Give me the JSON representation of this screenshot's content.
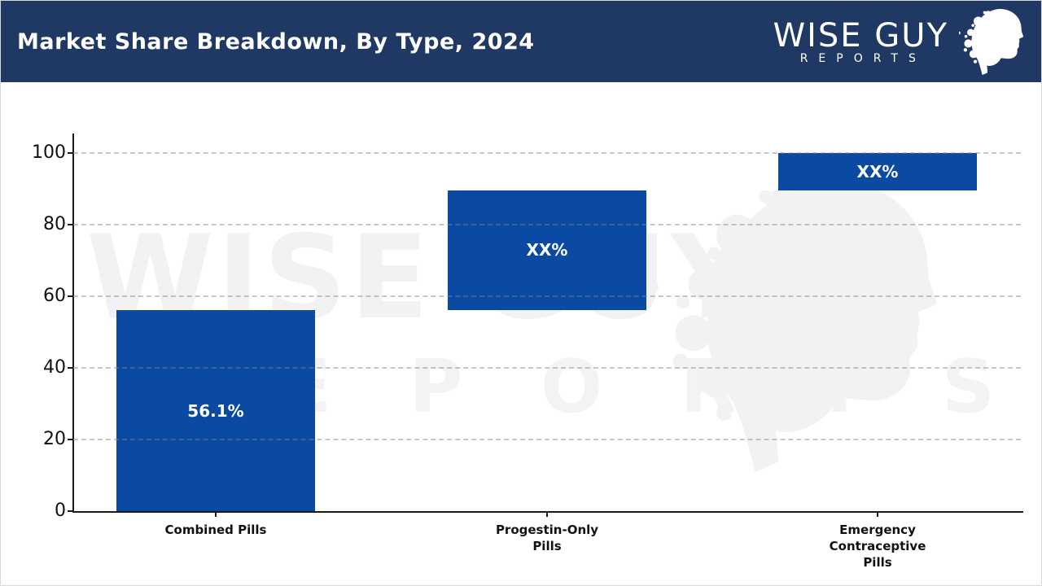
{
  "header": {
    "title": "Market Share Breakdown, By Type, 2024",
    "logo": {
      "line1": "WISE GUY",
      "line2": "REPORTS"
    }
  },
  "watermark": {
    "line1": "WISE GUY",
    "line2": "R E P O R T S"
  },
  "chart_data": {
    "type": "bar",
    "subtype": "stacked-waterfall",
    "title": "Market Share Breakdown, By Type, 2024",
    "categories": [
      "Combined Pills",
      "Progestin-Only Pills",
      "Emergency Contraceptive Pills"
    ],
    "categories_display": [
      "Combined Pills",
      "Progestin-Only\nPills",
      "Emergency\nContraceptive\nPills"
    ],
    "segments": [
      {
        "category": "Combined Pills",
        "start": 0,
        "end": 56.1,
        "label": "56.1%"
      },
      {
        "category": "Progestin-Only Pills",
        "start": 56.1,
        "end": 89.6,
        "label": "XX%"
      },
      {
        "category": "Emergency Contraceptive Pills",
        "start": 89.6,
        "end": 100,
        "label": "XX%"
      }
    ],
    "xlabel": "",
    "ylabel": "",
    "ylim": [
      0,
      105.5
    ],
    "yticks": [
      0,
      20,
      40,
      60,
      80,
      100
    ],
    "grid": "horizontal-dashed",
    "legend": "none",
    "bar_color": "#0b4aa2",
    "label_color": "#ffffff",
    "axis_color": "#1a1a1a",
    "grid_color": "rgba(130,130,130,0.45)"
  }
}
